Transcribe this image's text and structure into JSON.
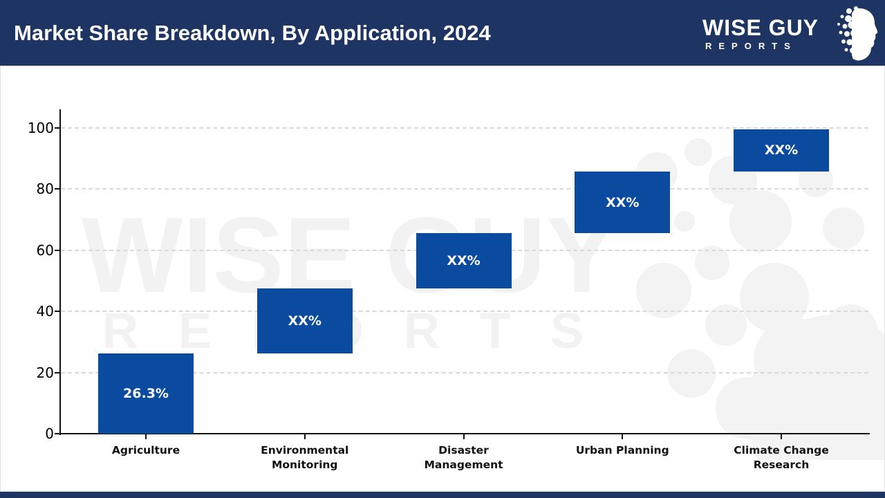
{
  "header": {
    "title": "Market Share Breakdown, By Application, 2024",
    "logo": {
      "wordmark": "WISE GUY",
      "sub": "REPORTS"
    }
  },
  "watermark": {
    "line1": "WISE GUY",
    "line2": "REPORTS"
  },
  "colors": {
    "header_bg": "#1e3462",
    "footer_bg": "#1e3462",
    "bar": "#0b4b9f",
    "bar_label": "#ffffff",
    "grid": "#d9d9d9",
    "axis": "#111111",
    "watermark": "#f2f2f2"
  },
  "chart_data": {
    "type": "bar",
    "subtype": "waterfall",
    "title": "Market Share Breakdown, By Application, 2024",
    "categories": [
      "Agriculture",
      "Environmental Monitoring",
      "Disaster Management",
      "Urban Planning",
      "Climate Change Research"
    ],
    "category_label_lines": [
      [
        "Agriculture"
      ],
      [
        "Environmental",
        "Monitoring"
      ],
      [
        "Disaster",
        "Management"
      ],
      [
        "Urban Planning"
      ],
      [
        "Climate Change",
        "Research"
      ]
    ],
    "segments": [
      {
        "category": "Agriculture",
        "start": 0,
        "end": 26.3,
        "label": "26.3%"
      },
      {
        "category": "Environmental Monitoring",
        "start": 26.3,
        "end": 47.5,
        "label": "XX%"
      },
      {
        "category": "Disaster Management",
        "start": 47.5,
        "end": 65.5,
        "label": "XX%"
      },
      {
        "category": "Urban Planning",
        "start": 65.5,
        "end": 85.8,
        "label": "XX%"
      },
      {
        "category": "Climate Change Research",
        "start": 85.8,
        "end": 99.6,
        "label": "XX%"
      }
    ],
    "yticks": [
      0,
      20,
      40,
      60,
      80,
      100
    ],
    "ylim": [
      0,
      106
    ],
    "xlabel": "",
    "ylabel": "",
    "grid": "horizontal-dashed",
    "legend": "none"
  }
}
